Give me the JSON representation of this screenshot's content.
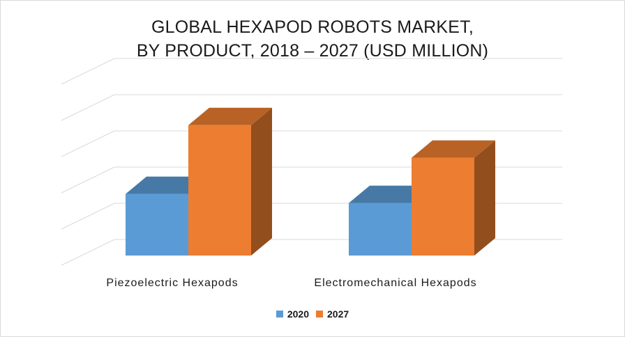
{
  "chart_data": {
    "type": "bar",
    "title_lines": [
      "GLOBAL HEXAPOD ROBOTS MARKET,",
      "BY PRODUCT, 2018 – 2027 (USD MILLION)"
    ],
    "categories": [
      "Piezoelectric Hexapods",
      "Electromechanical Hexapods"
    ],
    "series": [
      {
        "name": "2020",
        "values": [
          1.7,
          1.45
        ],
        "color": "#5b9bd5"
      },
      {
        "name": "2027",
        "values": [
          3.6,
          2.7
        ],
        "color": "#ed7d31"
      }
    ],
    "ylim": [
      0,
      5
    ],
    "grid": true,
    "legend_position": "bottom",
    "style": "3d-clustered-column"
  }
}
